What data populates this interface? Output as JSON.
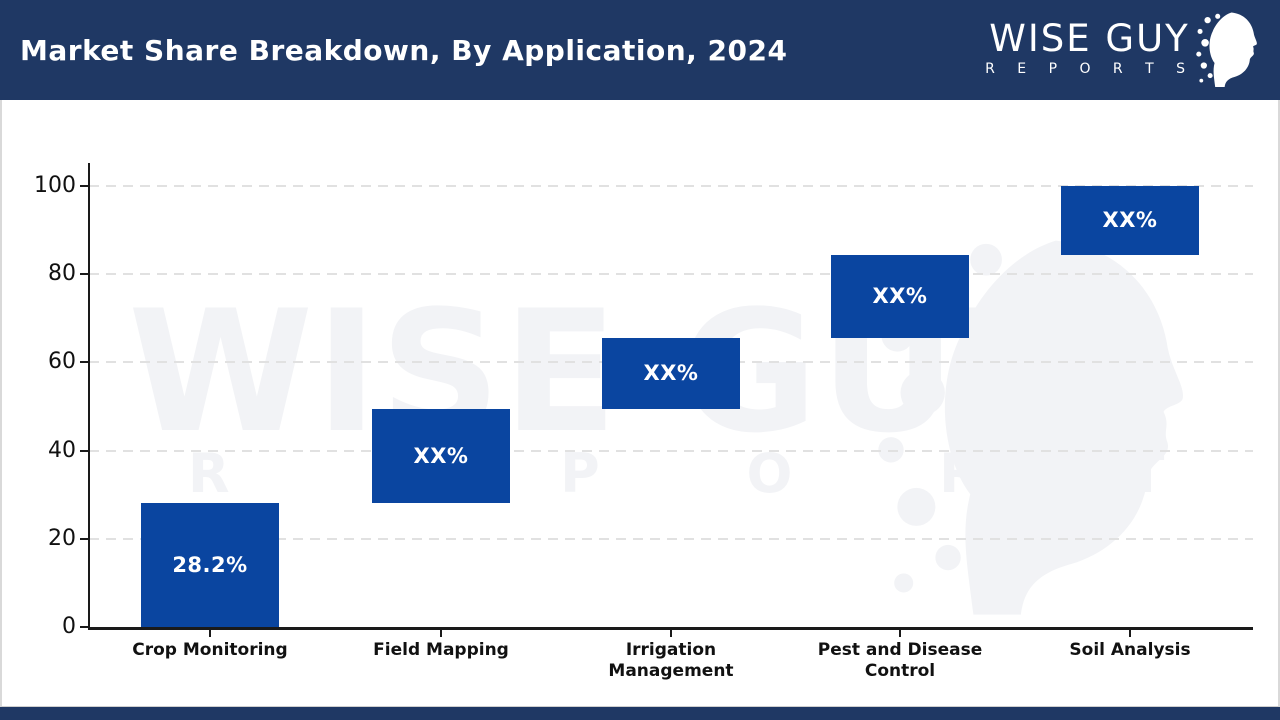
{
  "header": {
    "title": "Market Share Breakdown, By Application, 2024",
    "bg_color": "#1f3864",
    "logo": {
      "name": "WISE GUY REPORTS",
      "line1": "WISE GUY",
      "line2": "R E P O R T S"
    }
  },
  "watermark": {
    "line1": "WISE GUY",
    "line2": "R E P O R T S"
  },
  "chart_data": {
    "type": "bar",
    "subtype": "floating-waterfall",
    "title": "Market Share Breakdown, By Application, 2024",
    "categories": [
      "Crop Monitoring",
      "Field Mapping",
      "Irrigation Management",
      "Pest and Disease Control",
      "Soil Analysis"
    ],
    "segments": [
      {
        "category": "Crop Monitoring",
        "start": 0,
        "end": 28.2,
        "label": "28.2%"
      },
      {
        "category": "Field Mapping",
        "start": 28.2,
        "end": 49.5,
        "label": "XX%"
      },
      {
        "category": "Irrigation Management",
        "start": 49.5,
        "end": 65.6,
        "label": "XX%"
      },
      {
        "category": "Pest and Disease Control",
        "start": 65.6,
        "end": 84.4,
        "label": "XX%"
      },
      {
        "category": "Soil Analysis",
        "start": 84.4,
        "end": 100,
        "label": "XX%"
      }
    ],
    "y_ticks": [
      0,
      20,
      40,
      60,
      80,
      100
    ],
    "ylim": [
      0,
      104
    ],
    "xlabel": "",
    "ylabel": "",
    "grid": "horizontal-dashed",
    "legend": "none",
    "bar_color": "#0a45a0",
    "bar_label_color": "#ffffff",
    "axis_color": "#1a1a1a",
    "grid_color": "#e1e1e1"
  },
  "footer": {
    "bg_color": "#1f3864"
  }
}
